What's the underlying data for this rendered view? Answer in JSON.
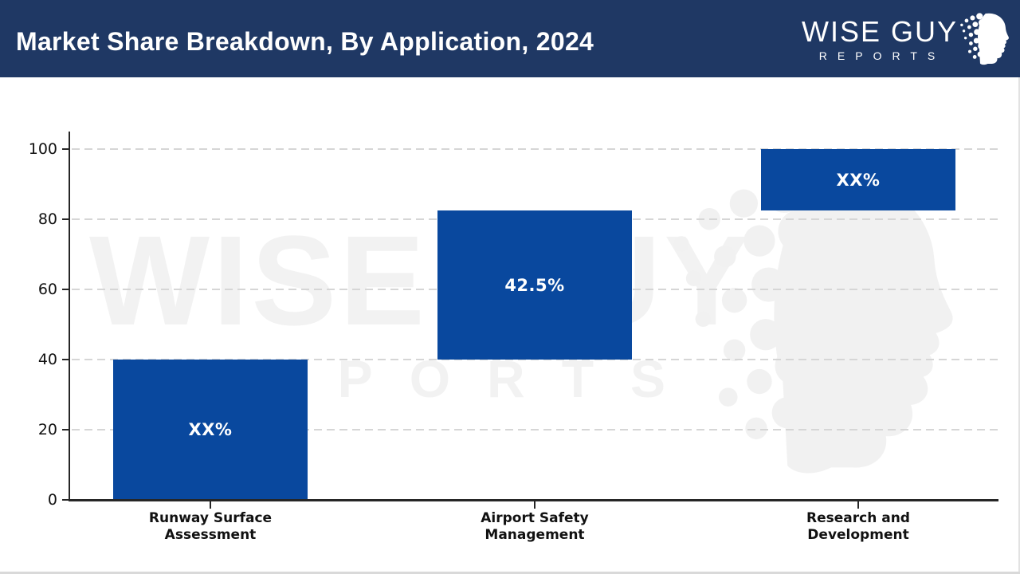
{
  "header": {
    "title": "Market Share Breakdown, By Application, 2024",
    "bg_color": "#1f3864",
    "text_color": "#ffffff"
  },
  "logo": {
    "line1": "WISE GUY",
    "line2": "REPORTS"
  },
  "watermark": {
    "line1": "WISE GUY",
    "line2": "REPORTS"
  },
  "chart_data": {
    "type": "bar",
    "subtype": "waterfall",
    "title": "Market Share Breakdown, By Application, 2024",
    "categories": [
      "Runway Surface Assessment",
      "Airport Safety Management",
      "Research and Development"
    ],
    "category_lines": [
      [
        "Runway Surface",
        "Assessment"
      ],
      [
        "Airport Safety",
        "Management"
      ],
      [
        "Research and",
        "Development"
      ]
    ],
    "segments": [
      {
        "category": "Runway Surface Assessment",
        "start": 0,
        "end": 40,
        "label": "XX%"
      },
      {
        "category": "Airport Safety Management",
        "start": 40,
        "end": 82.5,
        "label": "42.5%"
      },
      {
        "category": "Research and Development",
        "start": 82.5,
        "end": 100,
        "label": "XX%"
      }
    ],
    "xlabel": "",
    "ylabel": "",
    "ylim": [
      0,
      100
    ],
    "yticks": [
      0,
      20,
      40,
      60,
      80,
      100
    ],
    "grid": {
      "axis": "y",
      "style": "dashed",
      "color": "#d6d6d6"
    },
    "legend": "none",
    "bar_color": "#09489e",
    "bar_label_color": "#ffffff",
    "axis_color": "#262626",
    "tick_label_color": "#111111"
  }
}
